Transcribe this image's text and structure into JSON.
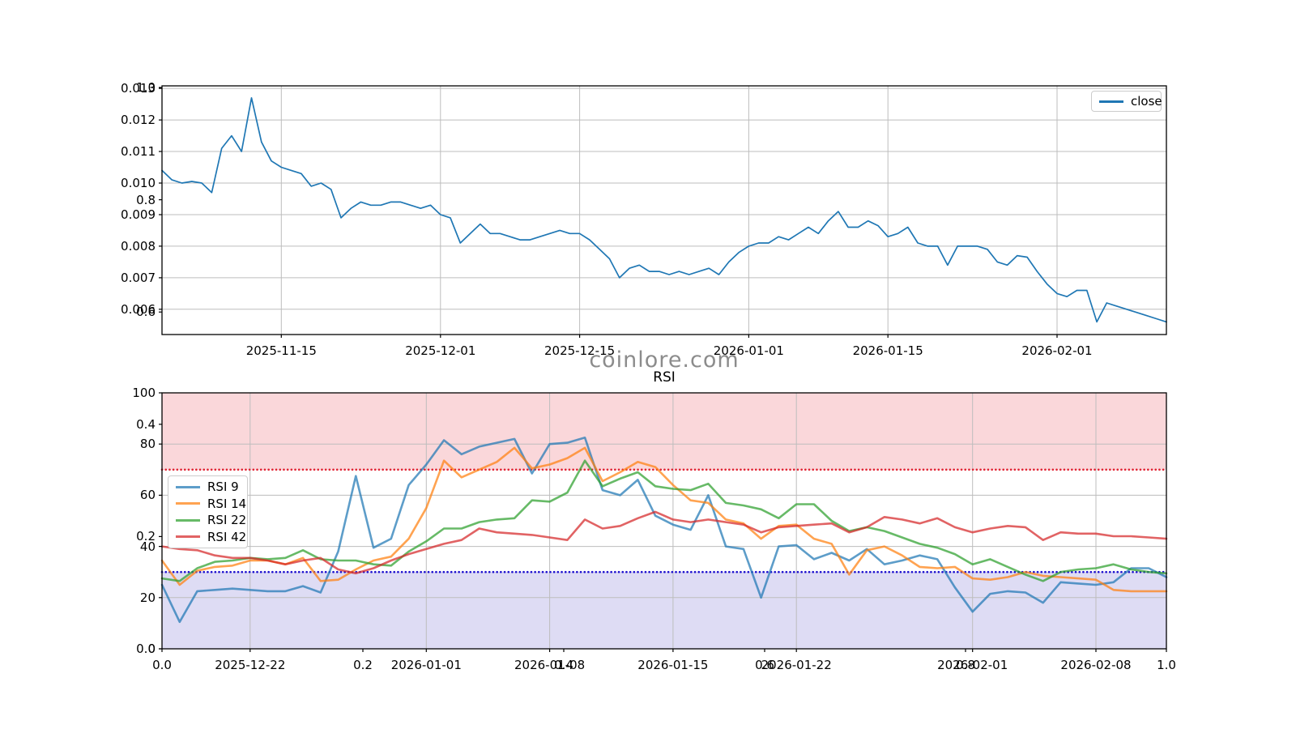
{
  "watermark": "coinlore.com",
  "colors": {
    "grid": "#bdbdbd",
    "spine": "#000000",
    "watermark_color": "#8c8c8c",
    "overbought_band": "#fad7da",
    "oversold_band": "#dedcf4",
    "overbought_line": "#e02434",
    "oversold_line": "#2013cf",
    "legend_border": "#cccccc",
    "close_line": "#1f77b4"
  },
  "overlay_axis": {
    "x_ticks": [
      "0.0",
      "0.2",
      "0.4",
      "0.6",
      "0.8",
      "1.0"
    ],
    "y_ticks": [
      "0.0",
      "0.2",
      "0.4",
      "0.6",
      "0.8",
      "1.0"
    ]
  },
  "chart_data": [
    {
      "type": "line",
      "name": "price",
      "title": "",
      "grid": true,
      "legend": {
        "position": "upper right",
        "entries": [
          {
            "label": "close",
            "color": "#1f77b4",
            "alpha": 1
          }
        ]
      },
      "ylim": [
        0.0052,
        0.01308
      ],
      "y_ticks": [
        "0.006",
        "0.007",
        "0.008",
        "0.009",
        "0.010",
        "0.011",
        "0.012",
        "0.013"
      ],
      "x_ticks": [
        "2025-11-15",
        "2025-12-01",
        "2025-12-15",
        "2026-01-01",
        "2026-01-15",
        "2026-02-01"
      ],
      "x": [
        "2025-11-03",
        "2025-11-04",
        "2025-11-05",
        "2025-11-06",
        "2025-11-07",
        "2025-11-08",
        "2025-11-09",
        "2025-11-10",
        "2025-11-11",
        "2025-11-12",
        "2025-11-13",
        "2025-11-14",
        "2025-11-15",
        "2025-11-16",
        "2025-11-17",
        "2025-11-18",
        "2025-11-19",
        "2025-11-20",
        "2025-11-21",
        "2025-11-22",
        "2025-11-23",
        "2025-11-24",
        "2025-11-25",
        "2025-11-26",
        "2025-11-27",
        "2025-11-28",
        "2025-11-29",
        "2025-11-30",
        "2025-12-01",
        "2025-12-02",
        "2025-12-03",
        "2025-12-04",
        "2025-12-05",
        "2025-12-06",
        "2025-12-07",
        "2025-12-08",
        "2025-12-09",
        "2025-12-10",
        "2025-12-11",
        "2025-12-12",
        "2025-12-13",
        "2025-12-14",
        "2025-12-15",
        "2025-12-16",
        "2025-12-17",
        "2025-12-18",
        "2025-12-19",
        "2025-12-20",
        "2025-12-21",
        "2025-12-22",
        "2025-12-23",
        "2025-12-24",
        "2025-12-25",
        "2025-12-26",
        "2025-12-27",
        "2025-12-28",
        "2025-12-29",
        "2025-12-30",
        "2025-12-31",
        "2026-01-01",
        "2026-01-02",
        "2026-01-03",
        "2026-01-04",
        "2026-01-05",
        "2026-01-06",
        "2026-01-07",
        "2026-01-08",
        "2026-01-09",
        "2026-01-10",
        "2026-01-11",
        "2026-01-12",
        "2026-01-13",
        "2026-01-14",
        "2026-01-15",
        "2026-01-16",
        "2026-01-17",
        "2026-01-18",
        "2026-01-19",
        "2026-01-20",
        "2026-01-21",
        "2026-01-22",
        "2026-01-23",
        "2026-01-24",
        "2026-01-25",
        "2026-01-26",
        "2026-01-27",
        "2026-01-28",
        "2026-01-29",
        "2026-01-30",
        "2026-01-31",
        "2026-02-01",
        "2026-02-02",
        "2026-02-03",
        "2026-02-04",
        "2026-02-05",
        "2026-02-06",
        "2026-02-07",
        "2026-02-08",
        "2026-02-09",
        "2026-02-10",
        "2026-02-11",
        "2026-02-12"
      ],
      "series": [
        {
          "name": "close",
          "color": "#1f77b4",
          "alpha": 1,
          "width": 1.7,
          "values": [
            0.0104,
            0.0101,
            0.01,
            0.01005,
            0.01,
            0.0097,
            0.0111,
            0.0115,
            0.011,
            0.0127,
            0.0113,
            0.0107,
            0.0105,
            0.0104,
            0.0103,
            0.0099,
            0.01,
            0.0098,
            0.0089,
            0.0092,
            0.0094,
            0.0093,
            0.0093,
            0.0094,
            0.0094,
            0.0093,
            0.0092,
            0.0093,
            0.009,
            0.0089,
            0.0081,
            0.0084,
            0.0087,
            0.0084,
            0.0084,
            0.0083,
            0.0082,
            0.0082,
            0.0083,
            0.0084,
            0.0085,
            0.0084,
            0.0084,
            0.0082,
            0.0079,
            0.0076,
            0.007,
            0.0073,
            0.0074,
            0.0072,
            0.0072,
            0.0071,
            0.0072,
            0.0071,
            0.0072,
            0.0073,
            0.0071,
            0.0075,
            0.0078,
            0.008,
            0.0081,
            0.0081,
            0.0083,
            0.0082,
            0.0084,
            0.0086,
            0.0084,
            0.0088,
            0.0091,
            0.0086,
            0.0086,
            0.0088,
            0.00865,
            0.0083,
            0.0084,
            0.0086,
            0.0081,
            0.008,
            0.008,
            0.0074,
            0.008,
            0.008,
            0.008,
            0.0079,
            0.0075,
            0.0074,
            0.0077,
            0.00765,
            0.0072,
            0.0068,
            0.0065,
            0.0064,
            0.0066,
            0.0066,
            0.0056,
            0.0062,
            0.0061,
            0.006,
            0.0059,
            0.0058,
            0.0057,
            0.0056
          ]
        }
      ]
    },
    {
      "type": "line",
      "name": "rsi",
      "title": "RSI",
      "grid": true,
      "legend": {
        "position": "center left",
        "entries": [
          {
            "label": "RSI 9",
            "color": "#1f77b4",
            "alpha": 0.72
          },
          {
            "label": "RSI 14",
            "color": "#ff7f0e",
            "alpha": 0.72
          },
          {
            "label": "RSI 22",
            "color": "#2ca02c",
            "alpha": 0.72
          },
          {
            "label": "RSI 42",
            "color": "#d62728",
            "alpha": 0.72
          }
        ]
      },
      "ylim": [
        0,
        100
      ],
      "y_ticks": [
        "0",
        "20",
        "40",
        "60",
        "80",
        "100"
      ],
      "x_ticks": [
        "2025-12-22",
        "2026-01-01",
        "2026-01-08",
        "2026-01-15",
        "2026-01-22",
        "2026-02-01",
        "2026-02-08"
      ],
      "bands": [
        {
          "from": 70,
          "to": 100,
          "color_key": "overbought_band"
        },
        {
          "from": 0,
          "to": 30,
          "color_key": "oversold_band"
        }
      ],
      "hlines": [
        {
          "y": 70,
          "color_key": "overbought_line"
        },
        {
          "y": 30,
          "color_key": "oversold_line"
        }
      ],
      "x": [
        "2025-12-17",
        "2025-12-18",
        "2025-12-19",
        "2025-12-20",
        "2025-12-21",
        "2025-12-22",
        "2025-12-23",
        "2025-12-24",
        "2025-12-25",
        "2025-12-26",
        "2025-12-27",
        "2025-12-28",
        "2025-12-29",
        "2025-12-30",
        "2025-12-31",
        "2026-01-01",
        "2026-01-02",
        "2026-01-03",
        "2026-01-04",
        "2026-01-05",
        "2026-01-06",
        "2026-01-07",
        "2026-01-08",
        "2026-01-09",
        "2026-01-10",
        "2026-01-11",
        "2026-01-12",
        "2026-01-13",
        "2026-01-14",
        "2026-01-15",
        "2026-01-16",
        "2026-01-17",
        "2026-01-18",
        "2026-01-19",
        "2026-01-20",
        "2026-01-21",
        "2026-01-22",
        "2026-01-23",
        "2026-01-24",
        "2026-01-25",
        "2026-01-26",
        "2026-01-27",
        "2026-01-28",
        "2026-01-29",
        "2026-01-30",
        "2026-01-31",
        "2026-02-01",
        "2026-02-02",
        "2026-02-03",
        "2026-02-04",
        "2026-02-05",
        "2026-02-06",
        "2026-02-07",
        "2026-02-08",
        "2026-02-09",
        "2026-02-10",
        "2026-02-11",
        "2026-02-12"
      ],
      "series": [
        {
          "name": "RSI 9",
          "color": "#1f77b4",
          "alpha": 0.72,
          "width": 2.6,
          "values": [
            25,
            10.5,
            22.5,
            23,
            23.5,
            23,
            22.5,
            22.5,
            24.5,
            22,
            38,
            67.5,
            39.5,
            43,
            64,
            72,
            81.5,
            76,
            79,
            80.5,
            82,
            68.5,
            80,
            80.5,
            82.5,
            62,
            60,
            66,
            52,
            48.5,
            46.5,
            60,
            40,
            39,
            20,
            40,
            40.5,
            35,
            37.5,
            34.5,
            39,
            33,
            34.5,
            36.5,
            35,
            24,
            14.5,
            21.5,
            22.5,
            22,
            18,
            26,
            25.5,
            25,
            26,
            31.5,
            31.5,
            28
          ]
        },
        {
          "name": "RSI 14",
          "color": "#ff7f0e",
          "alpha": 0.72,
          "width": 2.6,
          "values": [
            34.5,
            25,
            30.5,
            32,
            32.5,
            34.5,
            34.5,
            33,
            35.5,
            26.5,
            27,
            31,
            34.5,
            36,
            43,
            55,
            73.5,
            67,
            70,
            73,
            78.5,
            70.5,
            72,
            74.5,
            78.5,
            65.5,
            69,
            73,
            71,
            64,
            58,
            57,
            50.5,
            49,
            43,
            48,
            48.5,
            43,
            41,
            29,
            38.5,
            40,
            36.5,
            32,
            31.5,
            32,
            27.5,
            27,
            28,
            30,
            28.5,
            28,
            27.5,
            27,
            23,
            22.5,
            22.5,
            22.5
          ]
        },
        {
          "name": "RSI 22",
          "color": "#2ca02c",
          "alpha": 0.72,
          "width": 2.6,
          "values": [
            27.5,
            26.5,
            31.5,
            34,
            34.5,
            35.5,
            35,
            35.5,
            38.5,
            35,
            34.5,
            34.5,
            33,
            32.5,
            38,
            42,
            47,
            47,
            49.5,
            50.5,
            51,
            58,
            57.5,
            61,
            73.5,
            63.5,
            66.5,
            69,
            63.5,
            62.5,
            62,
            64.5,
            57,
            56,
            54.5,
            51,
            56.5,
            56.5,
            50,
            46,
            47.5,
            46,
            43.5,
            41,
            39.5,
            37,
            33,
            35,
            32,
            29,
            26.5,
            30,
            31,
            31.5,
            33,
            31,
            30,
            29.5
          ]
        },
        {
          "name": "RSI 42",
          "color": "#d62728",
          "alpha": 0.72,
          "width": 2.6,
          "values": [
            40,
            39,
            38.5,
            36.5,
            35.5,
            35.5,
            34.5,
            33,
            34.5,
            35.5,
            31,
            29.5,
            31.5,
            34.5,
            37,
            39,
            41,
            42.5,
            47,
            45.5,
            45,
            44.5,
            43.5,
            42.5,
            50.5,
            47,
            48,
            51,
            53.5,
            50.5,
            49.5,
            50.5,
            49.5,
            48.5,
            45.5,
            47.5,
            48,
            48.5,
            49,
            45.5,
            47.5,
            51.5,
            50.5,
            49,
            51,
            47.5,
            45.5,
            47,
            48,
            47.5,
            42.5,
            45.5,
            45,
            45,
            44,
            44,
            43.5,
            43
          ]
        }
      ]
    }
  ]
}
